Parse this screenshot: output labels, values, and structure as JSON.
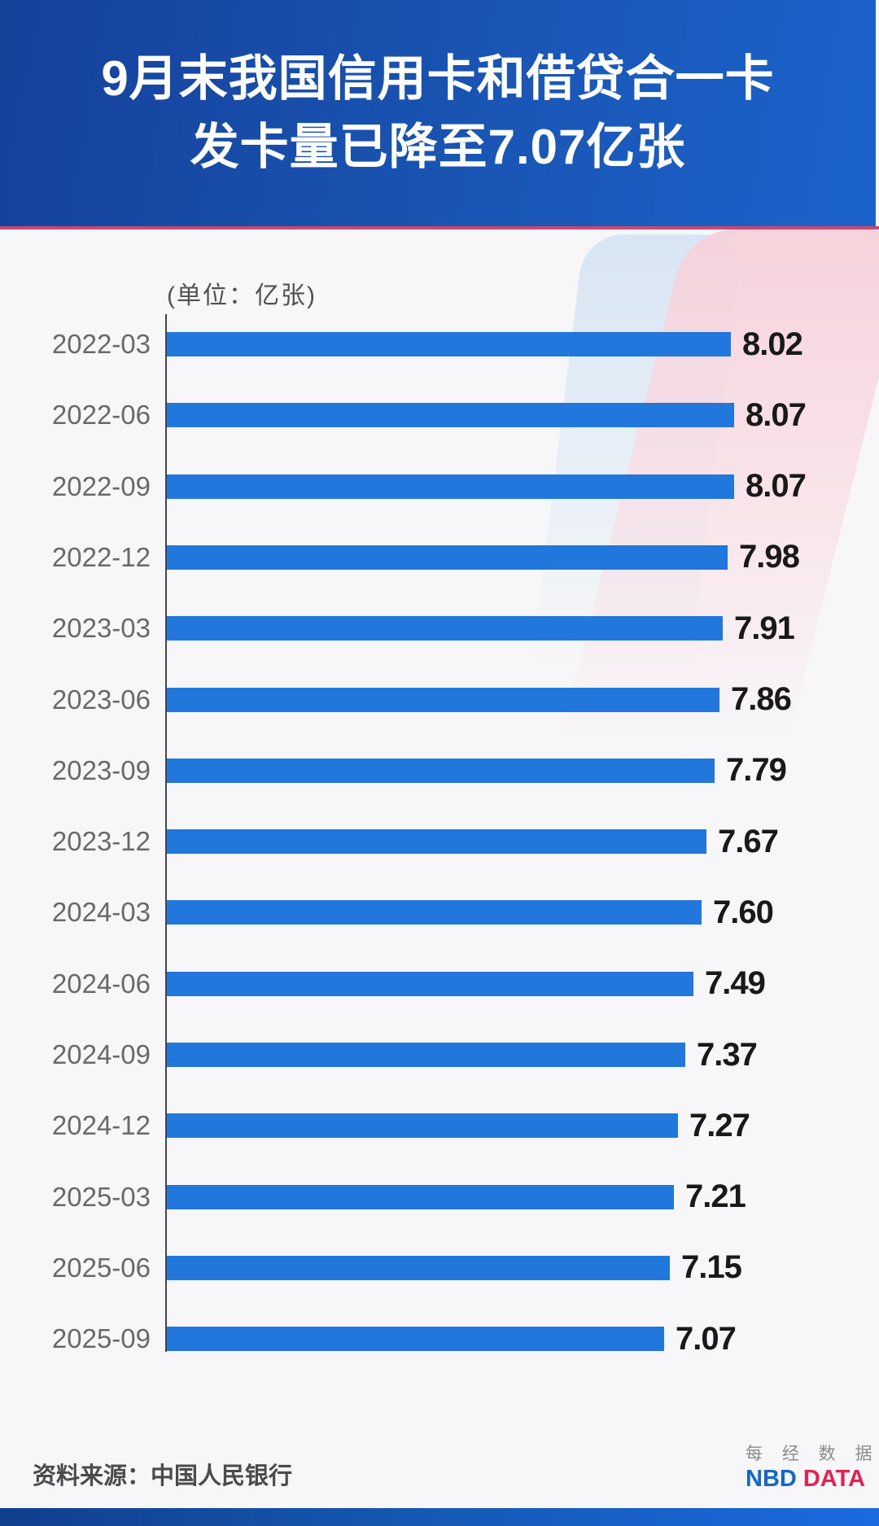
{
  "header": {
    "title_line1": "9月末我国信用卡和借贷合一卡",
    "title_line2": "发卡量已降至7.07亿张"
  },
  "chart_data": {
    "type": "bar",
    "orientation": "horizontal",
    "title": "9月末我国信用卡和借贷合一卡发卡量已降至7.07亿张",
    "unit_label": "(单位：亿张)",
    "categories": [
      "2022-03",
      "2022-06",
      "2022-09",
      "2022-12",
      "2023-03",
      "2023-06",
      "2023-09",
      "2023-12",
      "2024-03",
      "2024-06",
      "2024-09",
      "2024-12",
      "2025-03",
      "2025-06",
      "2025-09"
    ],
    "values": [
      8.02,
      8.07,
      8.07,
      7.98,
      7.91,
      7.86,
      7.79,
      7.67,
      7.6,
      7.49,
      7.37,
      7.27,
      7.21,
      7.15,
      7.07
    ],
    "xlim": [
      0,
      8.07
    ],
    "grid": false,
    "legend": false,
    "value_labels_shown": true,
    "bar_color": "#2277dd",
    "value_label_color": "#191919",
    "category_label_color": "#696969"
  },
  "colors": {
    "header_gradient_start": "#15419a",
    "header_gradient_end": "#1b63cc",
    "header_text": "#ffffff",
    "divider_red": "#c9486b",
    "background": "#f7f7f9",
    "watermark_blue": "#d6e4f3",
    "watermark_pink": "#f6d1da",
    "bottom_strip_start": "#123e8e",
    "bottom_strip_end": "#1b6ae0",
    "logo_blue": "#1366cb",
    "logo_red": "#e5224e"
  },
  "footer": {
    "source": "资料来源：中国人民银行",
    "logo_cn": "每经数据",
    "logo_copyright": "©",
    "logo_en_blue": "NBD",
    "logo_en_red": "DATA"
  }
}
